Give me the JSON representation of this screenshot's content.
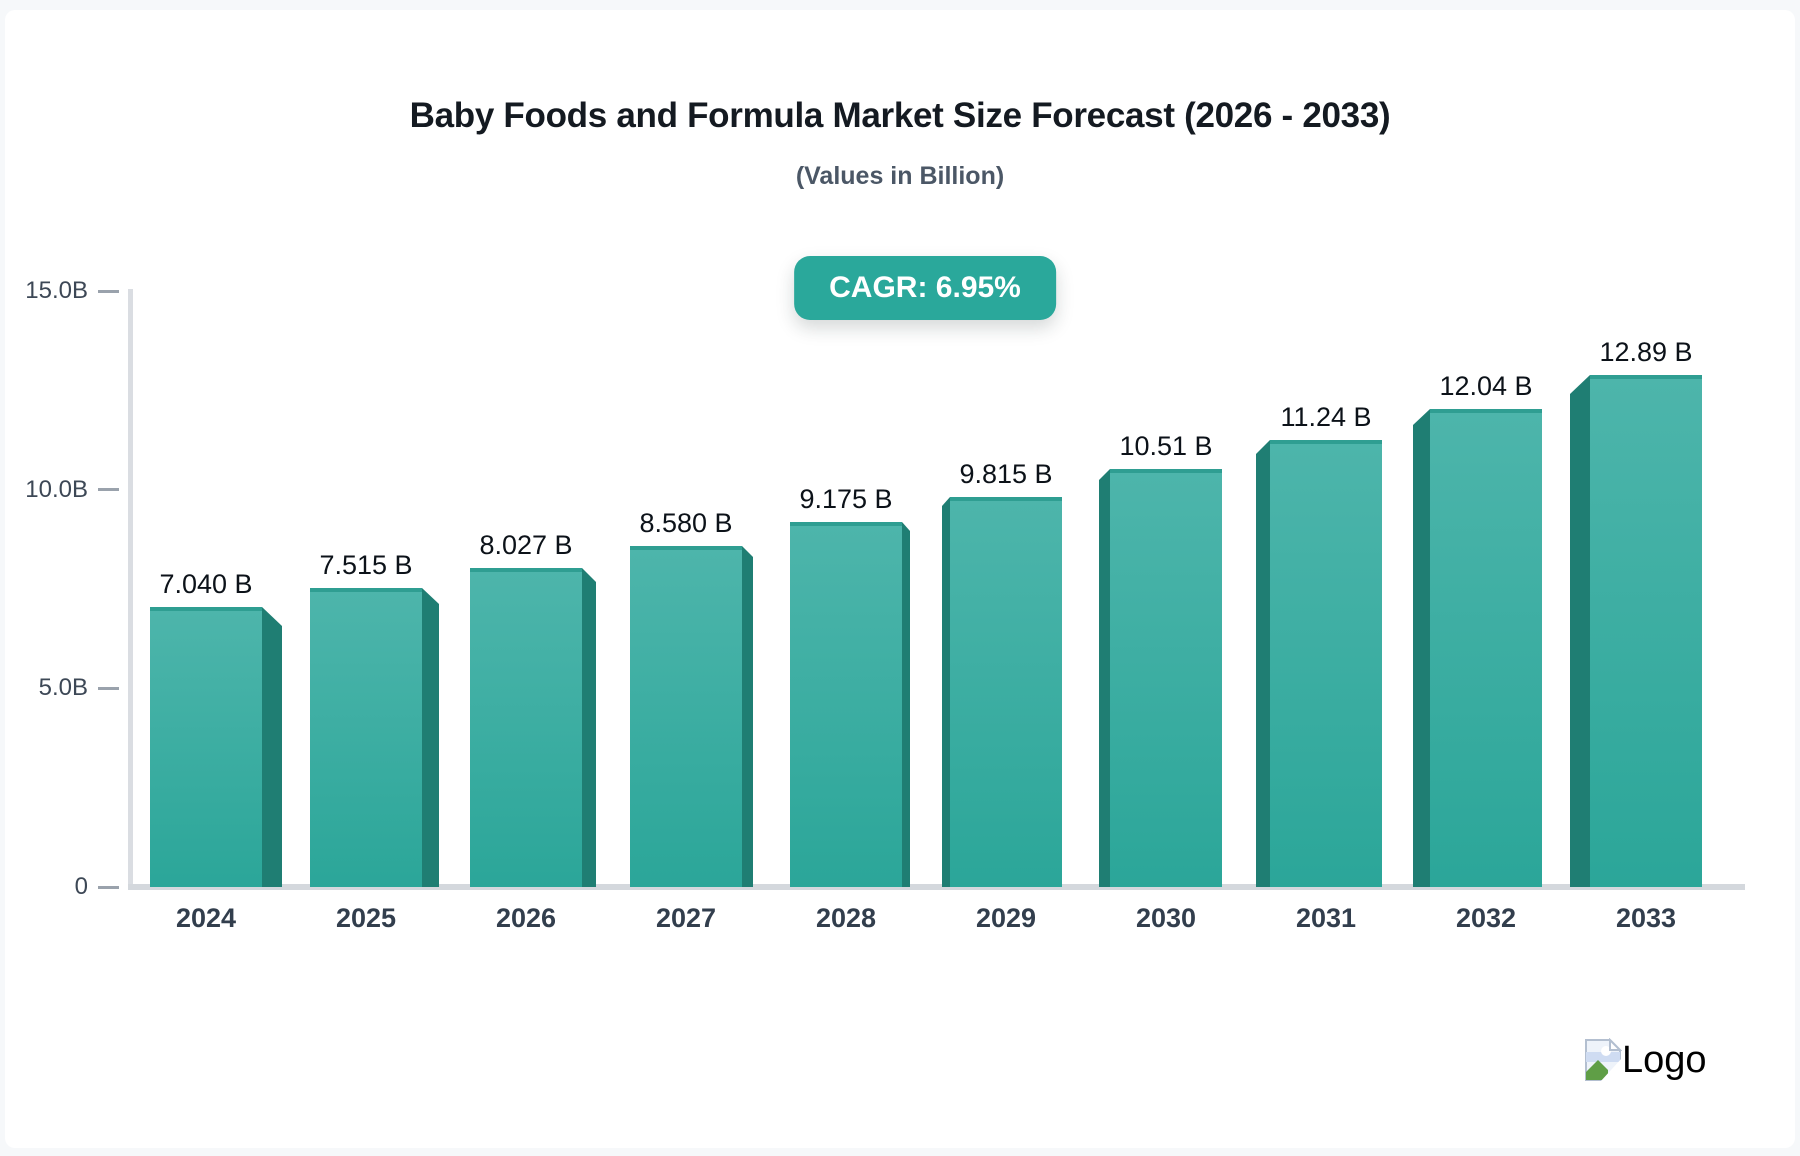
{
  "page": {
    "title": "Baby Foods and Formula Market Size Forecast (2026 - 2033)",
    "subtitle": "(Values in Billion)",
    "cagr_badge": "CAGR: 6.95%",
    "logo_alt": "Logo"
  },
  "colors": {
    "badge_bg": "#2aa89b",
    "bar_face_top": "#4db5ab",
    "bar_face_bottom": "#2ba699",
    "bar_top_edge": "#2f9e92",
    "bar_flank": "#1f7e73",
    "axis_line": "#dadde2",
    "baseline": "#d4d8dd",
    "tick": "#9aa2ac"
  },
  "chart_data": {
    "type": "bar",
    "title": "Baby Foods and Formula Market Size Forecast (2026 - 2033)",
    "subtitle": "(Values in Billion)",
    "annotation": "CAGR: 6.95%",
    "categories": [
      "2024",
      "2025",
      "2026",
      "2027",
      "2028",
      "2029",
      "2030",
      "2031",
      "2032",
      "2033"
    ],
    "values": [
      7.04,
      7.515,
      8.027,
      8.58,
      9.175,
      9.815,
      10.51,
      11.24,
      12.04,
      12.89
    ],
    "value_labels": [
      "7.040 B",
      "7.515 B",
      "8.027 B",
      "8.580 B",
      "9.175 B",
      "9.815 B",
      "10.51 B",
      "11.24 B",
      "12.04 B",
      "12.89 B"
    ],
    "xlabel": "",
    "ylabel": "",
    "ylim": [
      0,
      15
    ],
    "yticks": [
      {
        "value": 0,
        "label": "0"
      },
      {
        "value": 5,
        "label": "5.0B"
      },
      {
        "value": 10,
        "label": "10.0B"
      },
      {
        "value": 15,
        "label": "15.0B"
      }
    ],
    "grid": false,
    "legend": false,
    "bar_style": "pseudo-3d, teal, perspective vanishing at center"
  }
}
